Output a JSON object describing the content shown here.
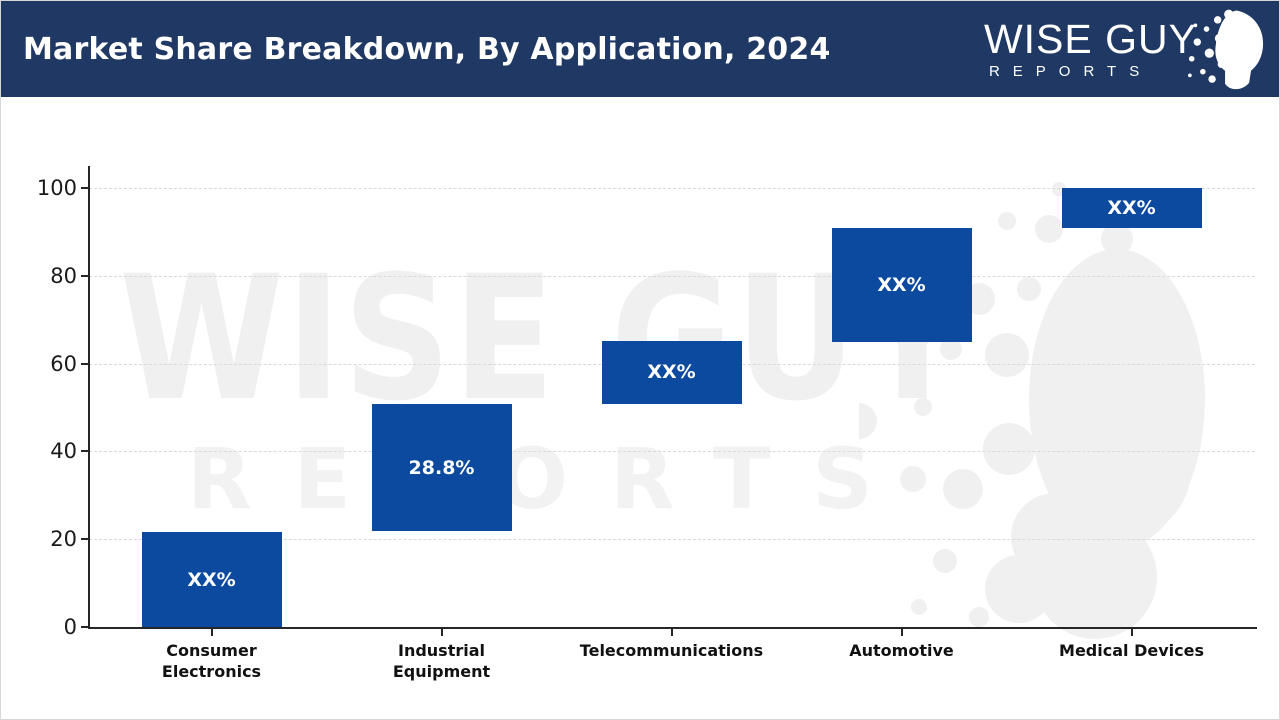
{
  "header": {
    "title": "Market Share Breakdown, By Application, 2024",
    "logo": {
      "name": "WISE GUY",
      "tagline": "REPORTS"
    }
  },
  "watermark": {
    "line1": "WISE GUY",
    "line2": "REPORTS"
  },
  "chart_data": {
    "type": "bar",
    "subtype": "floating-segment-waterfall",
    "title": "Market Share Breakdown, By Application, 2024",
    "xlabel": "",
    "ylabel": "",
    "ylim": [
      0,
      105
    ],
    "yticks": [
      0,
      20,
      40,
      60,
      80,
      100
    ],
    "grid": "horizontal-dashed",
    "legend": "none",
    "bar_color": "#0b4a9f",
    "header_color": "#1f3864",
    "categories": [
      "Consumer Electronics",
      "Industrial Equipment",
      "Telecommunications",
      "Automotive",
      "Medical Devices"
    ],
    "category_lines": [
      [
        "Consumer",
        "Electronics"
      ],
      [
        "Industrial",
        "Equipment"
      ],
      [
        "Telecommunications"
      ],
      [
        "Automotive"
      ],
      [
        "Medical Devices"
      ]
    ],
    "segments": [
      {
        "category": "Consumer Electronics",
        "start": 0,
        "end": 21.6,
        "value_label": "XX%"
      },
      {
        "category": "Industrial Equipment",
        "start": 21.9,
        "end": 50.7,
        "value_label": "28.8%"
      },
      {
        "category": "Telecommunications",
        "start": 50.9,
        "end": 65.1,
        "value_label": "XX%"
      },
      {
        "category": "Automotive",
        "start": 64.9,
        "end": 90.9,
        "value_label": "XX%"
      },
      {
        "category": "Medical Devices",
        "start": 90.9,
        "end": 100,
        "value_label": "XX%"
      }
    ]
  }
}
